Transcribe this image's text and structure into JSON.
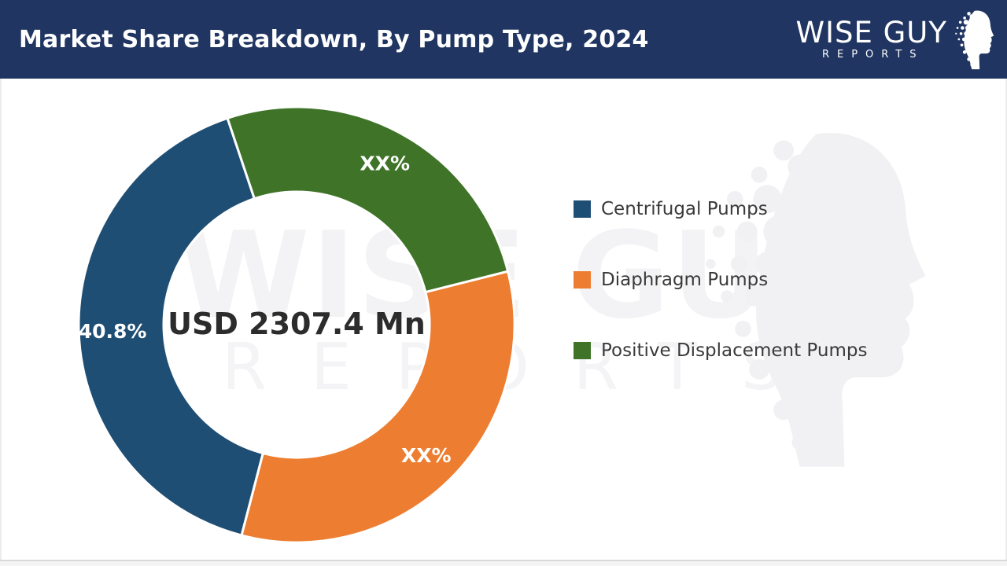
{
  "header": {
    "title": "Market Share Breakdown, By Pump Type, 2024",
    "logo": {
      "line1": "WISE GUY",
      "line2": "REPORTS"
    }
  },
  "watermark": {
    "line1": "WISE GUY",
    "line2": "REPORTS"
  },
  "chart_data": {
    "type": "pie",
    "donut": true,
    "title": "Market Share Breakdown, By Pump Type, 2024",
    "center_text": "USD 2307.4 Mn",
    "categories": [
      "Centrifugal Pumps",
      "Diaphragm Pumps",
      "Positive Displacement Pumps"
    ],
    "values": [
      40.8,
      33.0,
      26.2
    ],
    "value_labels": [
      "40.8%",
      "XX%",
      "XX%"
    ],
    "colors": [
      "#1f4e74",
      "#ed7d31",
      "#3f7428"
    ],
    "start_angle_deg": 108.5,
    "direction": "counterclockwise",
    "donut_hole_ratio": 0.61,
    "legend_position": "right",
    "grid": false
  }
}
